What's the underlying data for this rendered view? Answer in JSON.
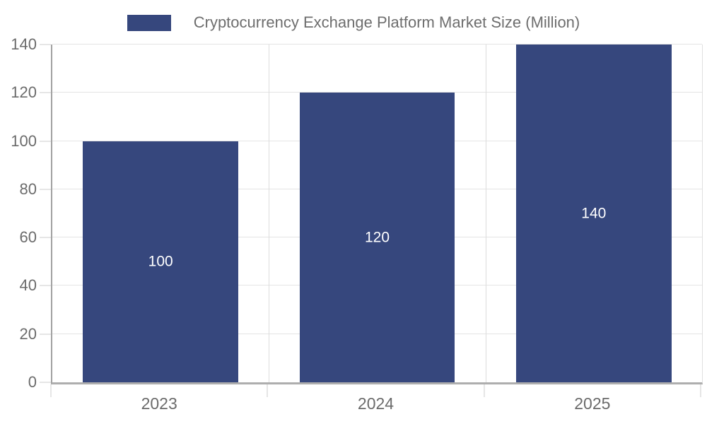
{
  "legend": {
    "label": "Cryptocurrency Exchange Platform Market Size (Million)"
  },
  "colors": {
    "bar": "#36477d",
    "horizontal_gridline": "#e4e4e4",
    "vertical_gridline": "#dcdcdc",
    "axis_line": "#a2a2a2",
    "tick_label": "#6b6b6b",
    "legend_text": "#6e6e6e",
    "value_label": "#ffffff",
    "background": "#ffffff"
  },
  "chart_data": {
    "type": "bar",
    "title": "Cryptocurrency Exchange Platform Market Size (Million)",
    "categories": [
      "2023",
      "2024",
      "2025"
    ],
    "values": [
      100,
      120,
      140
    ],
    "value_labels": [
      "100",
      "120",
      "140"
    ],
    "xlabel": "",
    "ylabel": "",
    "ylim": [
      0,
      140
    ],
    "yticks": [
      0,
      20,
      40,
      60,
      80,
      100,
      120,
      140
    ],
    "grid": true,
    "legend_position": "top",
    "bar_color": "#36477d",
    "bar_width_fraction_of_category": 0.717
  }
}
